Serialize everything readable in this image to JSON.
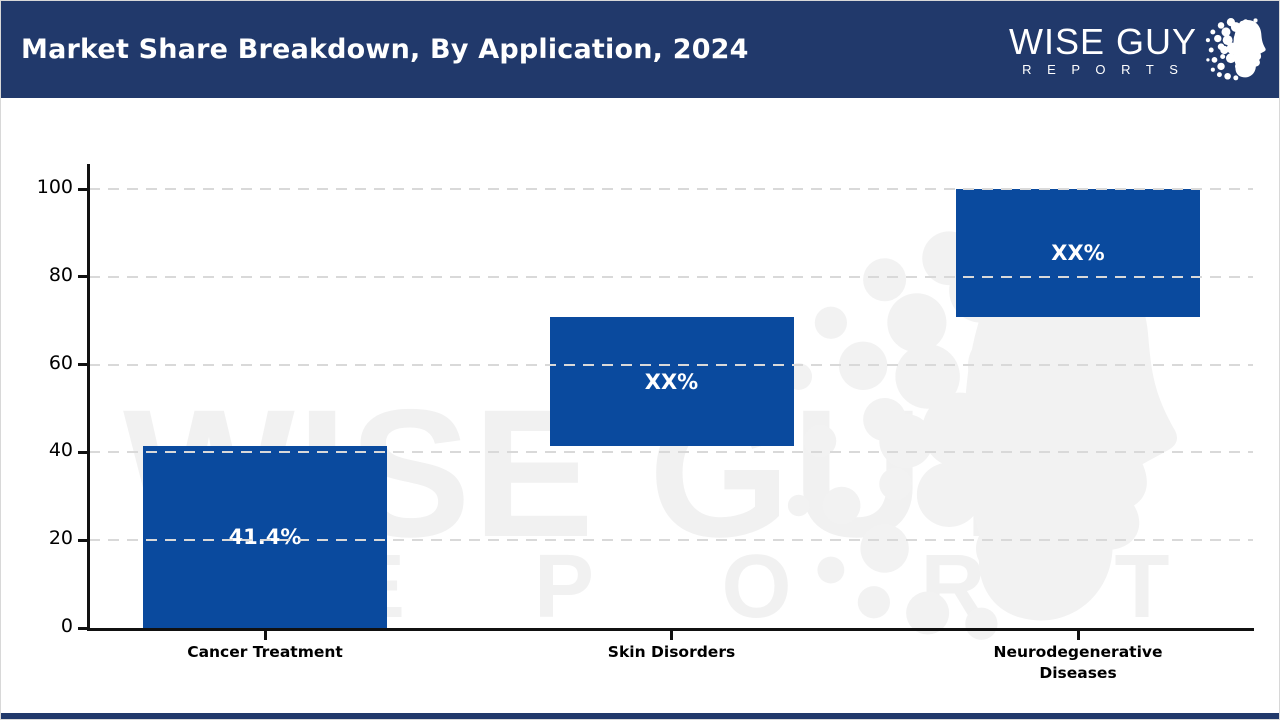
{
  "header": {
    "title": "Market Share Breakdown, By Application, 2024",
    "logo": {
      "line1": "WISE GUY",
      "line2": "R E P O R T S",
      "icon": "dotted-face-profile"
    }
  },
  "watermark": {
    "line1": "WISE GUY",
    "line2": "R E P O R T S",
    "icon": "dotted-face-profile"
  },
  "colors": {
    "header_bg": "#21396B",
    "footer_bg": "#21396B",
    "title_text": "#FFFFFF",
    "bar": "#0A4A9E",
    "bar_label": "#FFFFFF",
    "grid_line": "#D9D9D9",
    "axis": "#111111",
    "watermark": "#F1F1F1"
  },
  "chart_data": {
    "type": "bar",
    "variant": "stepped-segment-waterfall",
    "title": "Market Share Breakdown, By Application, 2024",
    "categories": [
      "Cancer Treatment",
      "Skin Disorders",
      "Neurodegenerative Diseases"
    ],
    "series": [
      {
        "name": "Market Share (%)",
        "segments": [
          {
            "category": "Cancer Treatment",
            "from": 0,
            "to": 41.4,
            "value_label": "41.4%"
          },
          {
            "category": "Skin Disorders",
            "from": 41.4,
            "to": 70.8,
            "value_label": "XX%"
          },
          {
            "category": "Neurodegenerative Diseases",
            "from": 70.8,
            "to": 100,
            "value_label": "XX%"
          }
        ]
      }
    ],
    "xlabel": "",
    "ylabel": "",
    "ylim": [
      0,
      105.5
    ],
    "yticks": [
      0,
      20,
      40,
      60,
      80,
      100
    ],
    "grid": "horizontal dashed, drawn over bars",
    "legend": "none"
  }
}
